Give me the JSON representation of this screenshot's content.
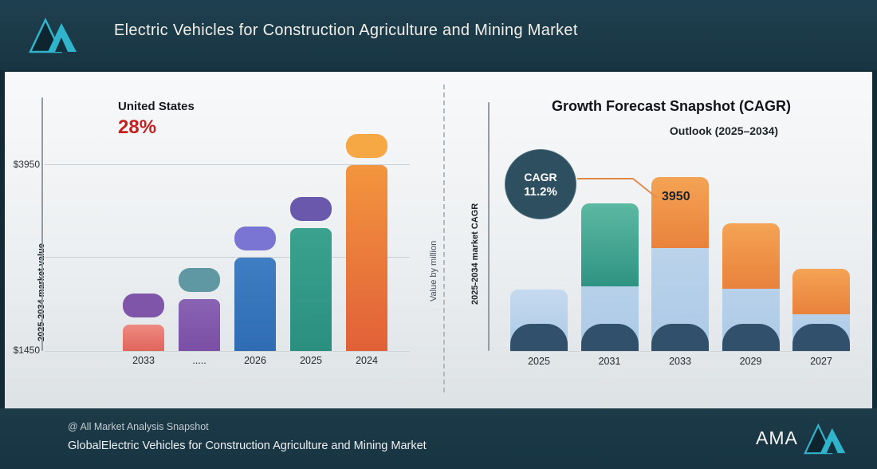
{
  "header": {
    "title": "Electric Vehicles for Construction Agriculture and Mining Market",
    "logo_alt": "AMA"
  },
  "footer": {
    "note": "@ All Market Analysis Snapshot",
    "title": "GlobalElectric Vehicles for Construction Agriculture and Mining Market",
    "brand": "AMA"
  },
  "colors": {
    "header_bg": "#1b3947",
    "accent_red": "#c4201f",
    "logo_cyan": "#2fb4cc",
    "badge_bg": "#2d4f60",
    "connector_orange": "#df8a4a"
  },
  "chart_data": [
    {
      "type": "bar",
      "title": "United States",
      "highlight": "28%",
      "ylabel": "2025-2034 market value",
      "ylabel_right": "Value by million",
      "categories": [
        "2033",
        ".....",
        "2026",
        "2025",
        "2024"
      ],
      "values": [
        1800,
        2150,
        2700,
        3100,
        3950
      ],
      "yticks": [
        {
          "label": "$3950",
          "value": 3950
        },
        {
          "label": "$1450",
          "value": 1450
        }
      ],
      "gridlines": [
        3950,
        2700
      ],
      "ylim": [
        1450,
        4880
      ],
      "grid": true,
      "bar_colors": [
        "#ee8a80",
        "#8a63b4",
        "#3f7ec2",
        "#3aa28e",
        "#f3953e"
      ],
      "bar_colors_dark": [
        "#e0655c",
        "#7a4fa5",
        "#2f6cb4",
        "#2b8f80",
        "#e16038"
      ],
      "cap_colors": [
        "#7e55a8",
        "#5f97a3",
        "#7a74d2",
        "#6a58ad",
        "#f6a844"
      ]
    },
    {
      "type": "stacked-bar",
      "title": "Growth Forecast Snapshot (CAGR)",
      "subtitle": "Outlook (2025–2034)",
      "ylabel": "2025-2034 market CAGR",
      "badge": {
        "label": "CAGR",
        "value": "11.2%"
      },
      "annotation": {
        "category": "2033",
        "label": "3950"
      },
      "categories": [
        "2025",
        "2031",
        "2033",
        "2029",
        "2027"
      ],
      "values": [
        1400,
        3350,
        3950,
        2900,
        1870
      ],
      "ylim": [
        0,
        5430
      ],
      "grid": false,
      "top_frac": [
        0,
        0.56,
        0.41,
        0.51,
        0.55
      ],
      "top_colors": [
        null,
        "#2f9383",
        "#e9823c",
        "#e9823c",
        "#e9823c"
      ],
      "top_colors_light": [
        null,
        "#5cb9a2",
        "#f4a354",
        "#f4a354",
        "#f4a354"
      ],
      "mid_color": "#abc9e6",
      "mid_color_light": "#c6daee",
      "dome_color": "#30506c"
    }
  ]
}
